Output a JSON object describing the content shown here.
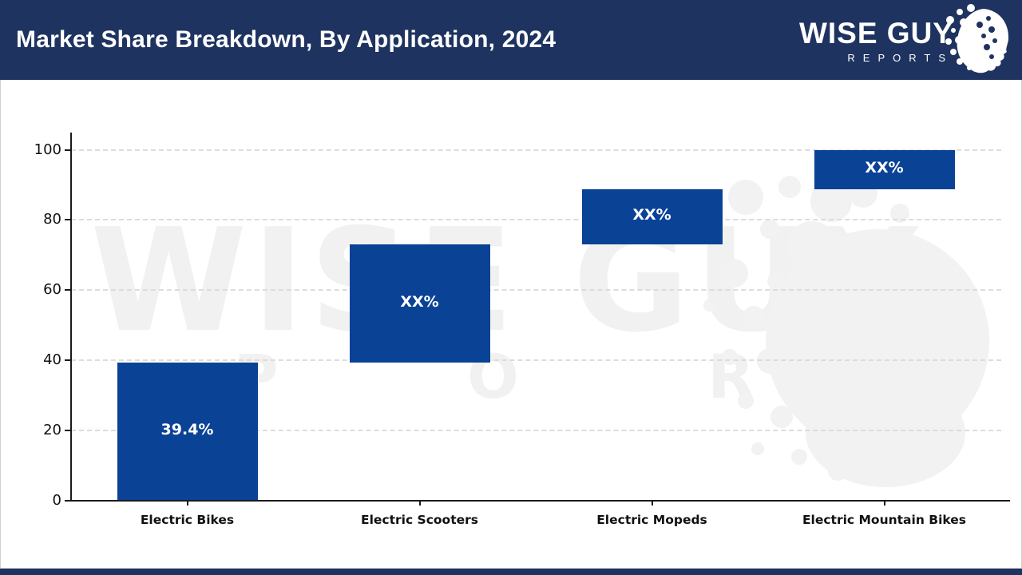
{
  "header": {
    "title": "Market Share Breakdown, By Application, 2024",
    "logo": {
      "main": "WISE GUY",
      "sub": "REPORTS"
    }
  },
  "watermark": {
    "line1": "WISE GUY",
    "line2": "P O R T S"
  },
  "icons": {
    "logo_face": "dotted-head-profile",
    "watermark_face": "dotted-head-profile"
  },
  "colors": {
    "header_bg": "#1e3360",
    "footer_bg": "#1e3360",
    "bar": "#0a4296",
    "grid": "#dcdcdc",
    "axis": "#1a1a1a",
    "watermark": "#f1f1f1",
    "bar_label": "#ffffff"
  },
  "chart_data": {
    "type": "bar",
    "subtype": "waterfall",
    "title": "Market Share Breakdown, By Application, 2024",
    "xlabel": "",
    "ylabel": "",
    "categories": [
      "Electric Bikes",
      "Electric Scooters",
      "Electric Mopeds",
      "Electric Mountain Bikes"
    ],
    "segments": [
      {
        "category": "Electric Bikes",
        "start": 0,
        "end": 39.4,
        "label": "39.4%"
      },
      {
        "category": "Electric Scooters",
        "start": 39.4,
        "end": 73,
        "label": "XX%"
      },
      {
        "category": "Electric Mopeds",
        "start": 73,
        "end": 88.8,
        "label": "XX%"
      },
      {
        "category": "Electric Mountain Bikes",
        "start": 88.8,
        "end": 100,
        "label": "XX%"
      }
    ],
    "yticks": [
      0,
      20,
      40,
      60,
      80,
      100
    ],
    "ylim": [
      0,
      105
    ],
    "grid": true,
    "grid_style": "dashed",
    "legend": false
  }
}
